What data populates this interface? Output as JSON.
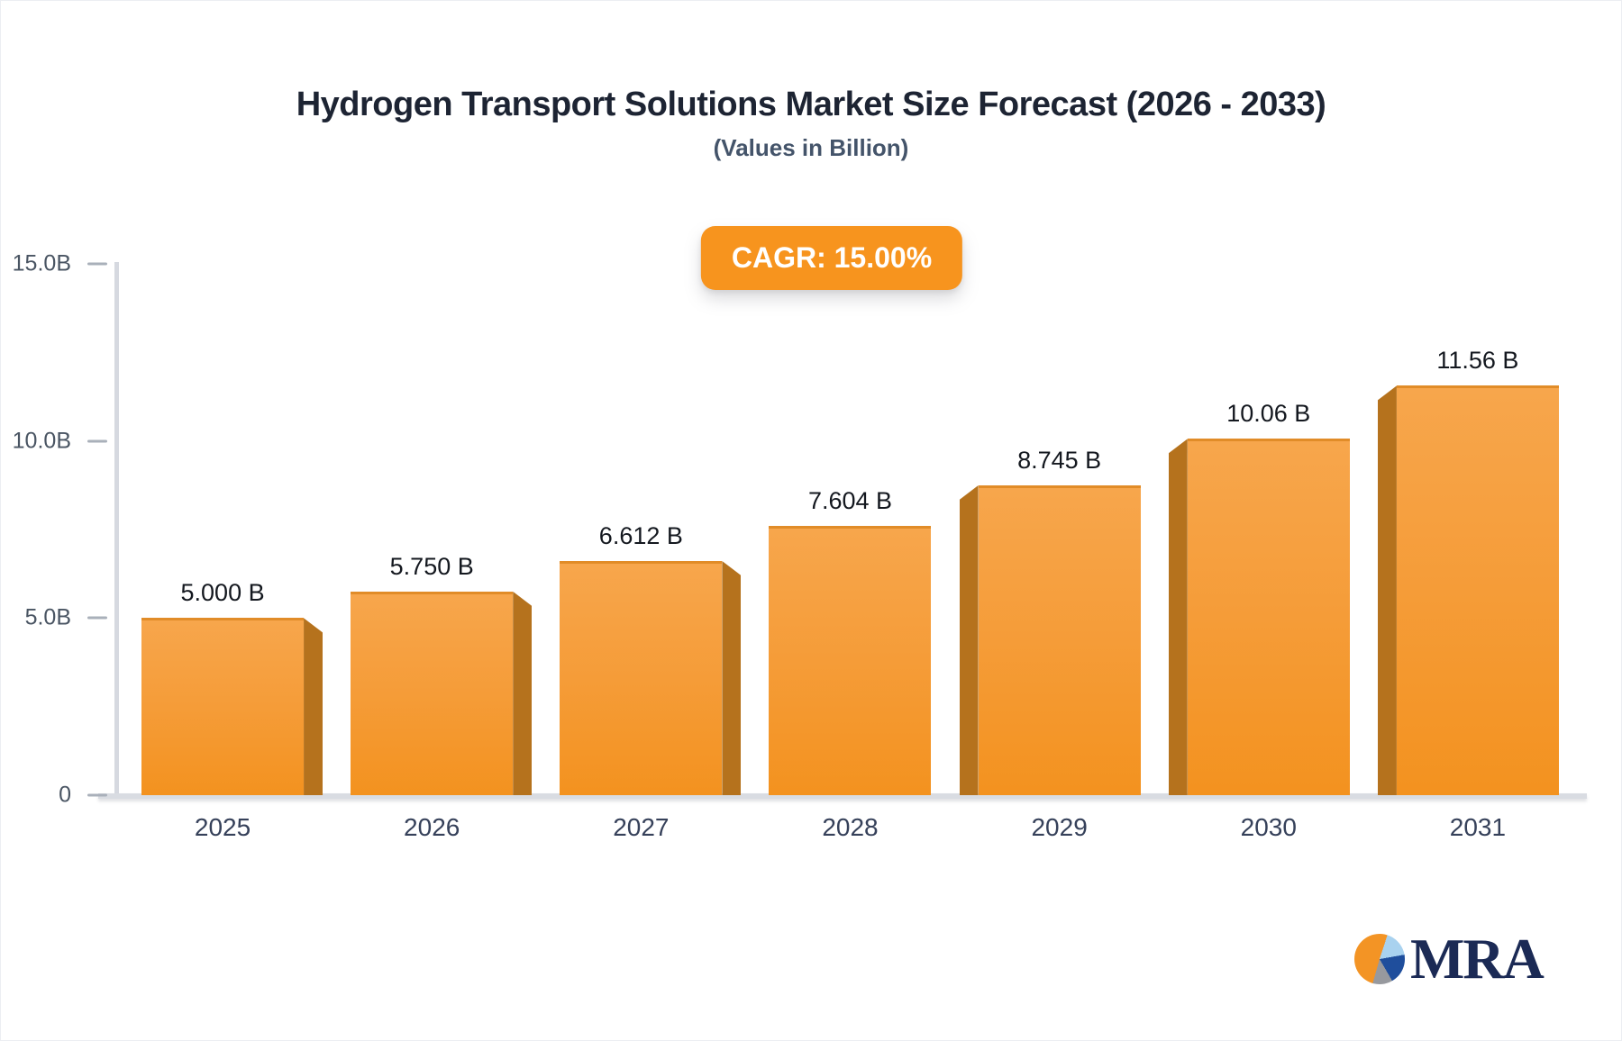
{
  "title": "Hydrogen Transport Solutions Market Size Forecast (2026 - 2033)",
  "subtitle": "(Values in Billion)",
  "cagr_badge": "CAGR: 15.00%",
  "logo": {
    "text": "MRA"
  },
  "colors": {
    "accent_orange": "#f7941e",
    "bar_face_top": "#f7a64c",
    "bar_face_bottom": "#f3921f",
    "bar_side_shade": "#b5721d",
    "logo_navy": "#1b2a55",
    "logo_pie": [
      "#f39425",
      "#a9d2ef",
      "#1f4e9c",
      "#97999e"
    ]
  },
  "chart_data": {
    "type": "bar",
    "title": "Hydrogen Transport Solutions Market Size Forecast (2026 - 2033)",
    "subtitle": "(Values in Billion)",
    "annotation": "CAGR: 15.00%",
    "categories": [
      "2025",
      "2026",
      "2027",
      "2028",
      "2029",
      "2030",
      "2031"
    ],
    "values": [
      5.0,
      5.75,
      6.612,
      7.604,
      8.745,
      10.06,
      11.56
    ],
    "value_labels": [
      "5.000 B",
      "5.750 B",
      "6.612 B",
      "7.604 B",
      "8.745 B",
      "10.06 B",
      "11.56 B"
    ],
    "xlabel": "",
    "ylabel": "",
    "y_axis": {
      "min": 0,
      "max": 15,
      "ticks": [
        {
          "value": 15,
          "label": "15.0B"
        },
        {
          "value": 10,
          "label": "10.0B"
        },
        {
          "value": 5,
          "label": "5.0B"
        },
        {
          "value": 0,
          "label": "0"
        }
      ]
    },
    "grid": false,
    "legend": false,
    "bar_style": "3d-extruded",
    "panel_sides": [
      "right",
      "right",
      "right",
      "none",
      "left",
      "left",
      "left"
    ]
  }
}
